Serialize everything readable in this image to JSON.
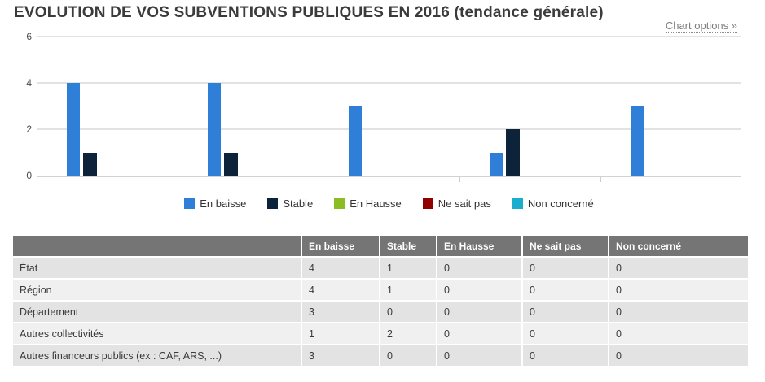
{
  "header": {
    "title": "EVOLUTION DE VOS SUBVENTIONS PUBLIQUES EN 2016 (tendance générale)",
    "chart_options_label": "Chart options »"
  },
  "chart_data": {
    "type": "bar",
    "title": "EVOLUTION DE VOS SUBVENTIONS PUBLIQUES EN 2016 (tendance générale)",
    "categories": [
      "État",
      "Région",
      "Département",
      "Autres collectivités",
      "Autres financeurs publics (ex : CAF, ARS, ...)"
    ],
    "series": [
      {
        "name": "En baisse",
        "color": "#2f7ed8",
        "values": [
          4,
          4,
          3,
          1,
          3
        ]
      },
      {
        "name": "Stable",
        "color": "#0d233a",
        "values": [
          1,
          1,
          0,
          2,
          0
        ]
      },
      {
        "name": "En Hausse",
        "color": "#8bbc21",
        "values": [
          0,
          0,
          0,
          0,
          0
        ]
      },
      {
        "name": "Ne sait pas",
        "color": "#910000",
        "values": [
          0,
          0,
          0,
          0,
          0
        ]
      },
      {
        "name": "Non concerné",
        "color": "#1aadce",
        "values": [
          0,
          0,
          0,
          0,
          0
        ]
      }
    ],
    "xlabel": "",
    "ylabel": "",
    "ylim": [
      0,
      6
    ],
    "yticks": [
      0,
      2,
      4,
      6
    ],
    "grid": true,
    "legend_position": "bottom"
  },
  "table": {
    "columns": [
      "",
      "En baisse",
      "Stable",
      "En Hausse",
      "Ne sait pas",
      "Non concerné"
    ],
    "rows": [
      {
        "label": "État",
        "values": [
          4,
          1,
          0,
          0,
          0
        ]
      },
      {
        "label": "Région",
        "values": [
          4,
          1,
          0,
          0,
          0
        ]
      },
      {
        "label": "Département",
        "values": [
          3,
          0,
          0,
          0,
          0
        ]
      },
      {
        "label": "Autres collectivités",
        "values": [
          1,
          2,
          0,
          0,
          0
        ]
      },
      {
        "label": "Autres financeurs publics (ex : CAF, ARS, ...)",
        "values": [
          3,
          0,
          0,
          0,
          0
        ]
      }
    ]
  }
}
